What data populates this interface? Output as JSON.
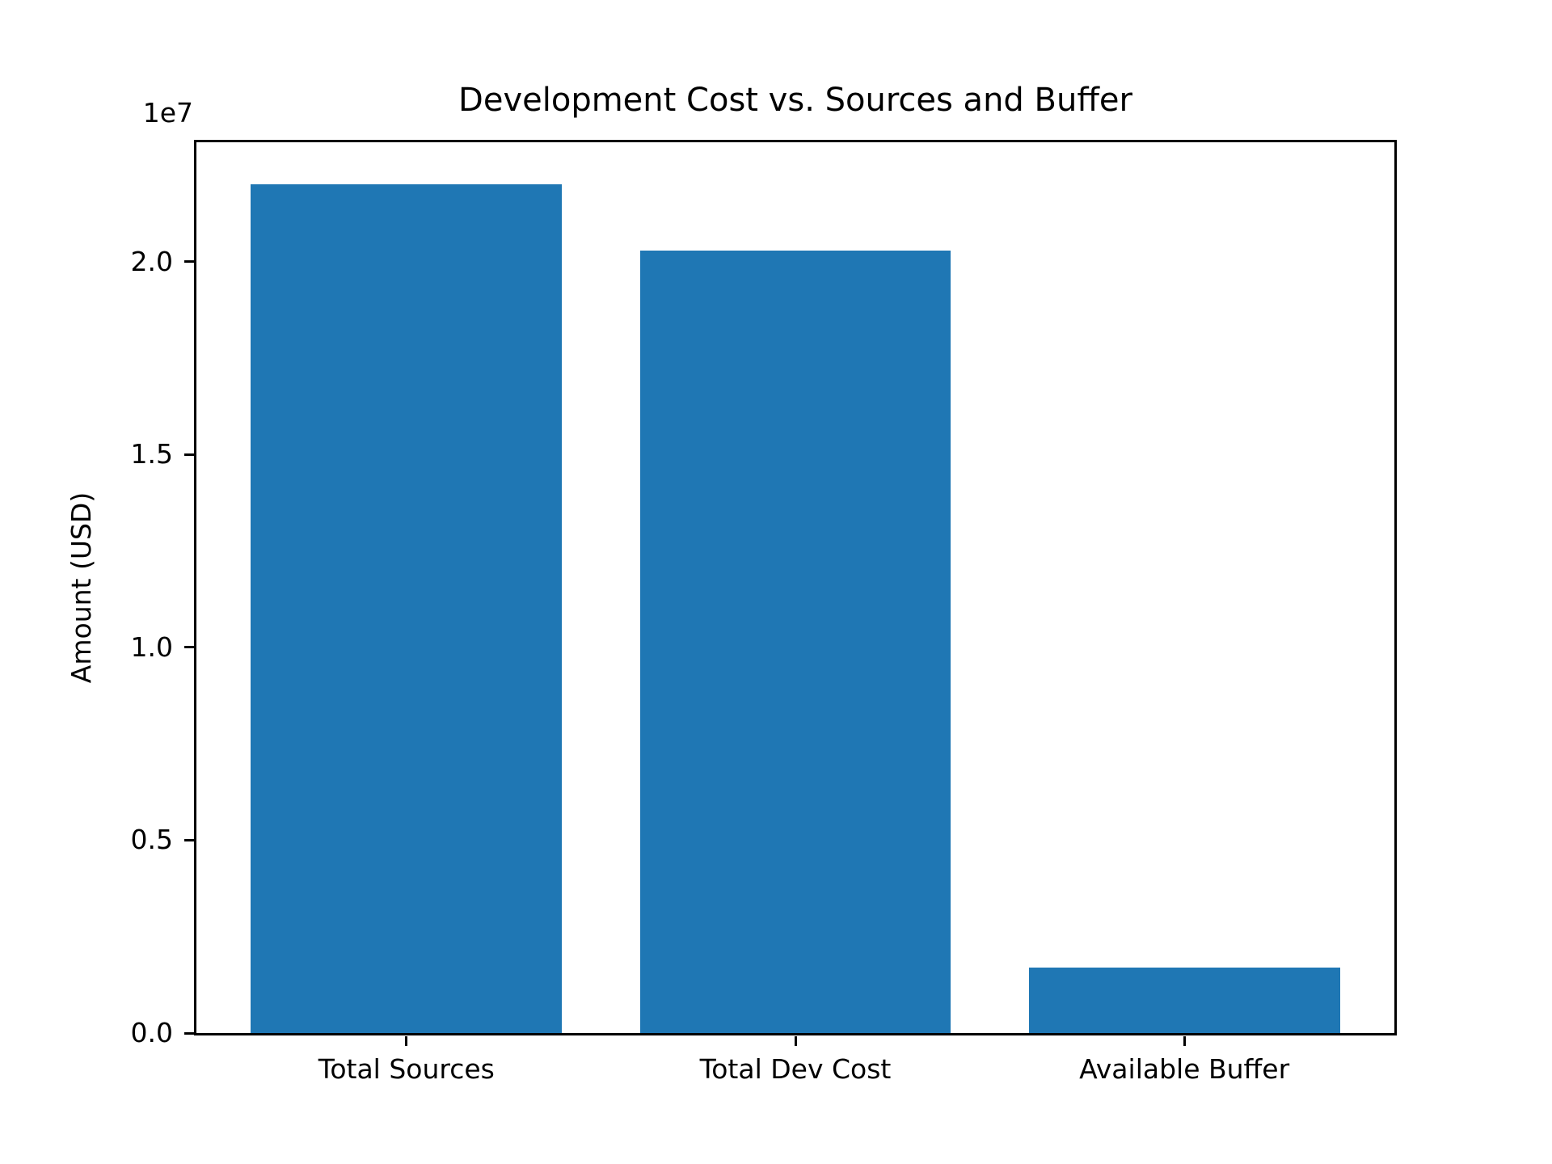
{
  "chart_data": {
    "type": "bar",
    "title": "Development Cost vs. Sources and Buffer",
    "xlabel": "",
    "ylabel": "Amount (USD)",
    "y_offset_label": "1e7",
    "categories": [
      "Total Sources",
      "Total Dev Cost",
      "Available Buffer"
    ],
    "values": [
      22000000,
      20300000,
      1700000
    ],
    "bar_color": "#1f77b4",
    "text_color": "#000000",
    "ylim": [
      0,
      23100000
    ],
    "yticks": [
      {
        "value": 0,
        "label": "0.0"
      },
      {
        "value": 5000000,
        "label": "0.5"
      },
      {
        "value": 10000000,
        "label": "1.0"
      },
      {
        "value": 15000000,
        "label": "1.5"
      },
      {
        "value": 20000000,
        "label": "2.0"
      }
    ],
    "grid": false,
    "legend": "none"
  }
}
